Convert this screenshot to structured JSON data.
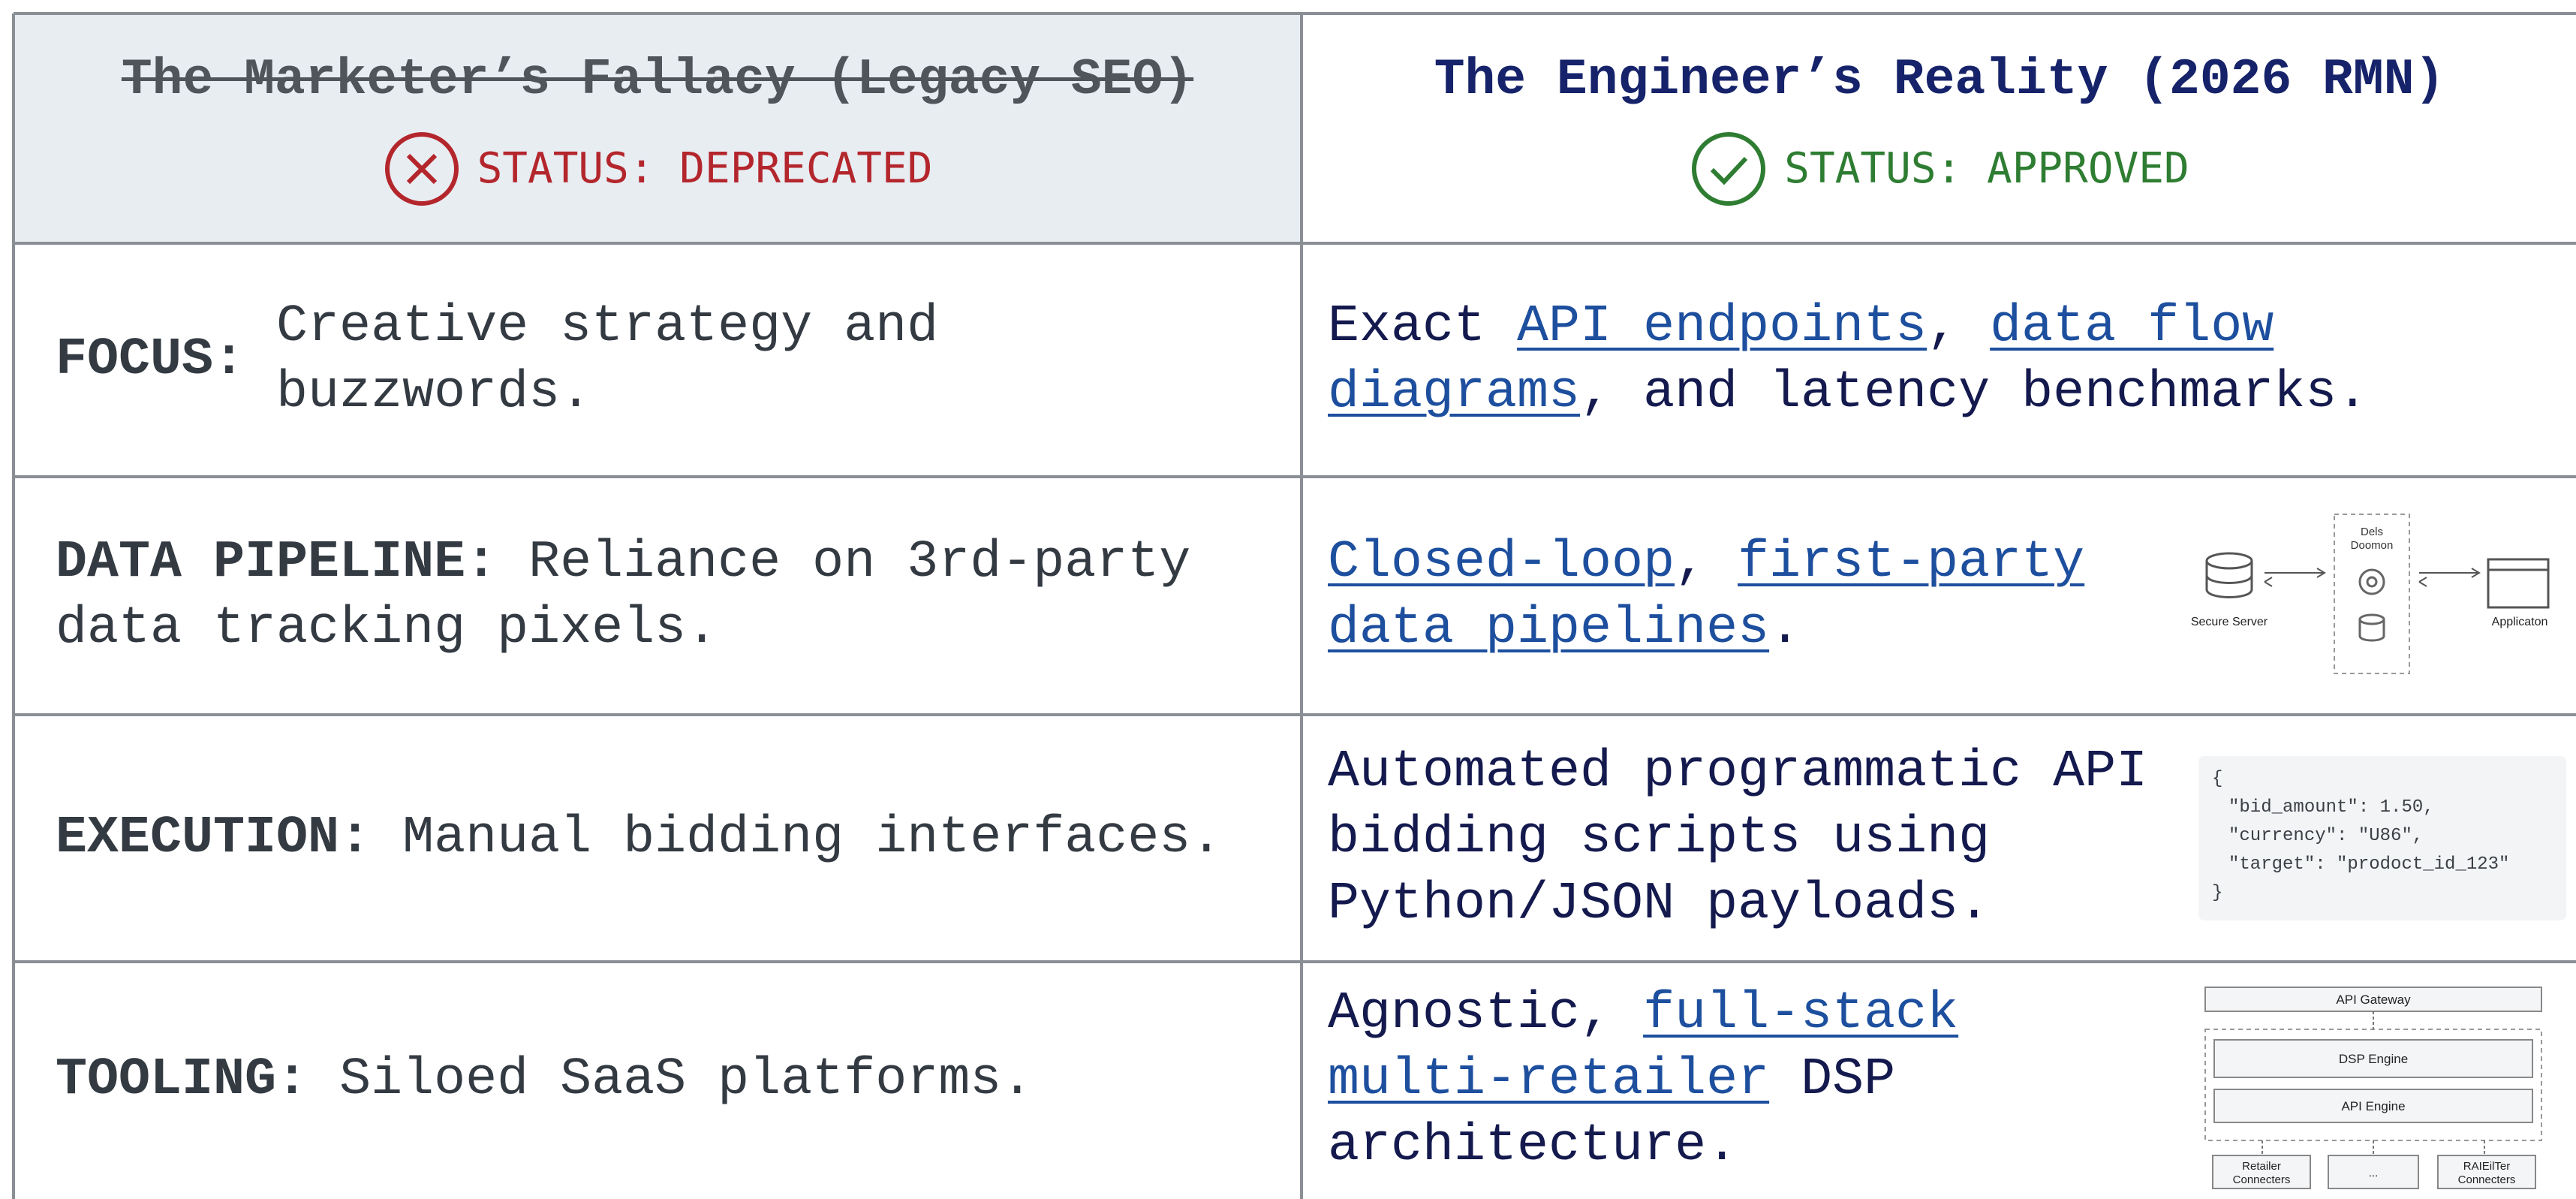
{
  "header": {
    "left": {
      "title": "The Marketer’s Fallacy (Legacy SEO)",
      "status": "STATUS: DEPRECATED"
    },
    "right": {
      "title": "The Engineer’s Reality (2026 RMN)",
      "status": "STATUS: APPROVED"
    }
  },
  "rows": [
    {
      "label": "FOCUS:",
      "left_text": "Creative strategy and buzzwords.",
      "right": [
        {
          "text": "Exact "
        },
        {
          "text": "API endpoints",
          "link": true
        },
        {
          "text": ", "
        },
        {
          "text": "data flow diagrams",
          "link": true
        },
        {
          "text": ", and latency benchmarks."
        }
      ]
    },
    {
      "label": "DATA PIPELINE:",
      "left_text": "Reliance on 3rd-party data tracking pixels.",
      "right": [
        {
          "text": "Closed-loop",
          "link": true
        },
        {
          "text": ", "
        },
        {
          "text": "first-party data pipelines",
          "link": true
        },
        {
          "text": "."
        }
      ],
      "diagram": {
        "center": [
          "Dels",
          "Doomon"
        ],
        "left": "Secure Server",
        "right": "Applicaton"
      }
    },
    {
      "label": "EXECUTION:",
      "left_text": "Manual bidding interfaces.",
      "right": [
        {
          "text": "Automated programmatic API bidding scripts using Python/JSON payloads."
        }
      ],
      "code": [
        "{",
        "\"bid_amount\": 1.50,",
        "\"currency\": \"U86\",",
        "\"target\": \"prodoct_id_123\"",
        "}"
      ]
    },
    {
      "label": "TOOLING:",
      "left_text": "Siloed SaaS platforms.",
      "right": [
        {
          "text": "Agnostic, "
        },
        {
          "text": "full-stack multi-retailer",
          "link": true
        },
        {
          "text": " DSP architecture."
        }
      ],
      "architecture": {
        "layers": [
          "API Gateway",
          "DSP Engine",
          "API Engine"
        ],
        "connectors": [
          [
            "Retailer",
            "Connecters"
          ],
          [
            "..."
          ],
          [
            "RAIEilTer",
            "Connecters"
          ]
        ]
      }
    }
  ]
}
